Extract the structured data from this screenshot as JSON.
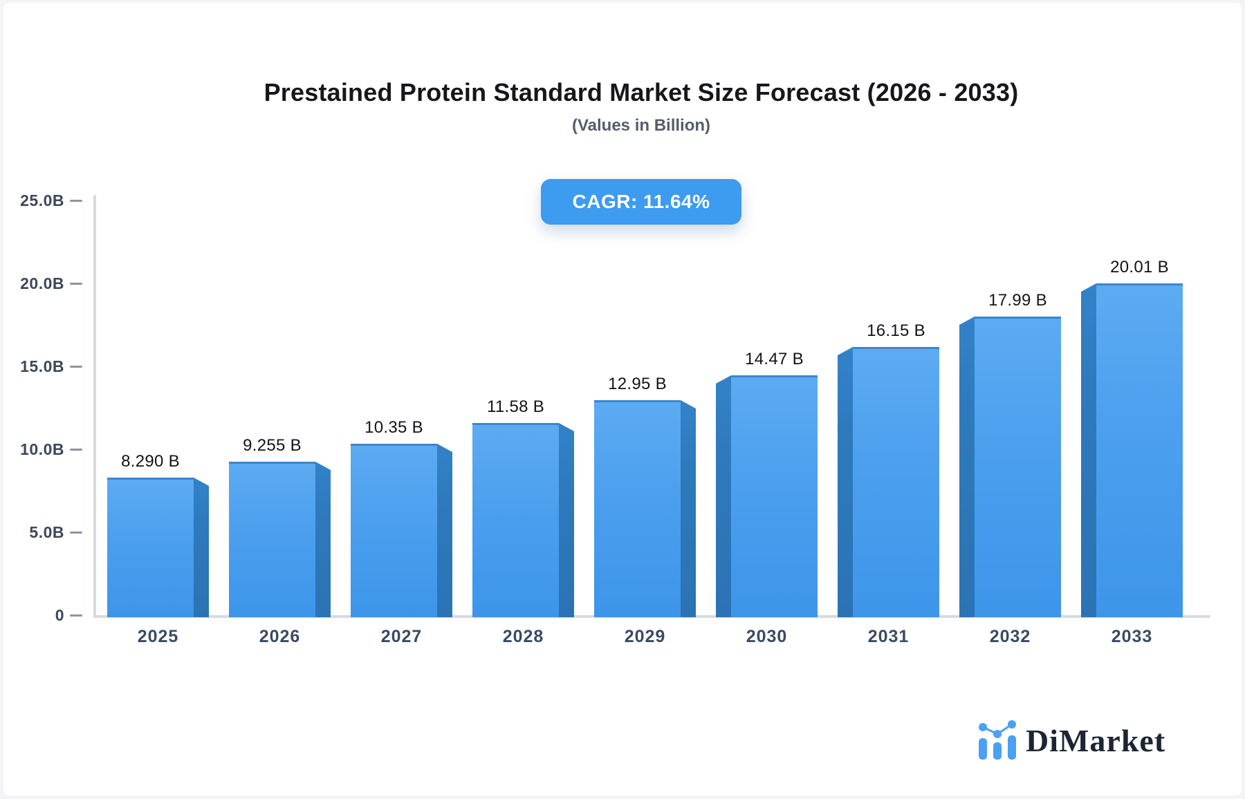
{
  "page": {
    "background": "#f2f4f7",
    "card_background": "#ffffff"
  },
  "header": {
    "title": "Prestained Protein Standard Market Size Forecast (2026 - 2033)",
    "subtitle": "(Values in Billion)"
  },
  "cagr_badge": {
    "label": "CAGR: 11.64%",
    "background": "#3d9bf0",
    "text_color": "#ffffff"
  },
  "chart_data": {
    "type": "bar",
    "title": "Prestained Protein Standard Market Size Forecast (2026 - 2033)",
    "subtitle": "(Values in Billion)",
    "categories": [
      "2025",
      "2026",
      "2027",
      "2028",
      "2029",
      "2030",
      "2031",
      "2032",
      "2033"
    ],
    "values": [
      8.29,
      9.255,
      10.35,
      11.58,
      12.95,
      14.47,
      16.15,
      17.99,
      20.01
    ],
    "value_labels": [
      "8.290 B",
      "9.255 B",
      "10.35 B",
      "11.58 B",
      "12.95 B",
      "14.47 B",
      "16.15 B",
      "17.99 B",
      "20.01 B"
    ],
    "xlabel": "",
    "ylabel": "",
    "ylim": [
      0,
      25
    ],
    "y_ticks": [
      {
        "value": 25,
        "label": "25.0B"
      },
      {
        "value": 20,
        "label": "20.0B"
      },
      {
        "value": 15,
        "label": "15.0B"
      },
      {
        "value": 10,
        "label": "10.0B"
      },
      {
        "value": 5,
        "label": "5.0B"
      },
      {
        "value": 0,
        "label": "0"
      }
    ],
    "grid": false,
    "legend": false,
    "annotation": "CAGR: 11.64%",
    "bar_style": {
      "effect": "3d",
      "face_top": "#5cabf2",
      "face_bottom": "#3d95ea",
      "top_edge": "#3b86cd",
      "side_panel": "#2e7abd"
    }
  },
  "axis_colors": {
    "line": "#d7dbe1",
    "tick": "#8c95a3",
    "tick_label": "#3d4859",
    "category_label": "#394a63",
    "value_label": "#111316"
  },
  "logo": {
    "text": "DiMarket",
    "icon": "mini-bar-chart-icon",
    "icon_color": "#4aa0f5",
    "text_color": "#1b2534"
  }
}
